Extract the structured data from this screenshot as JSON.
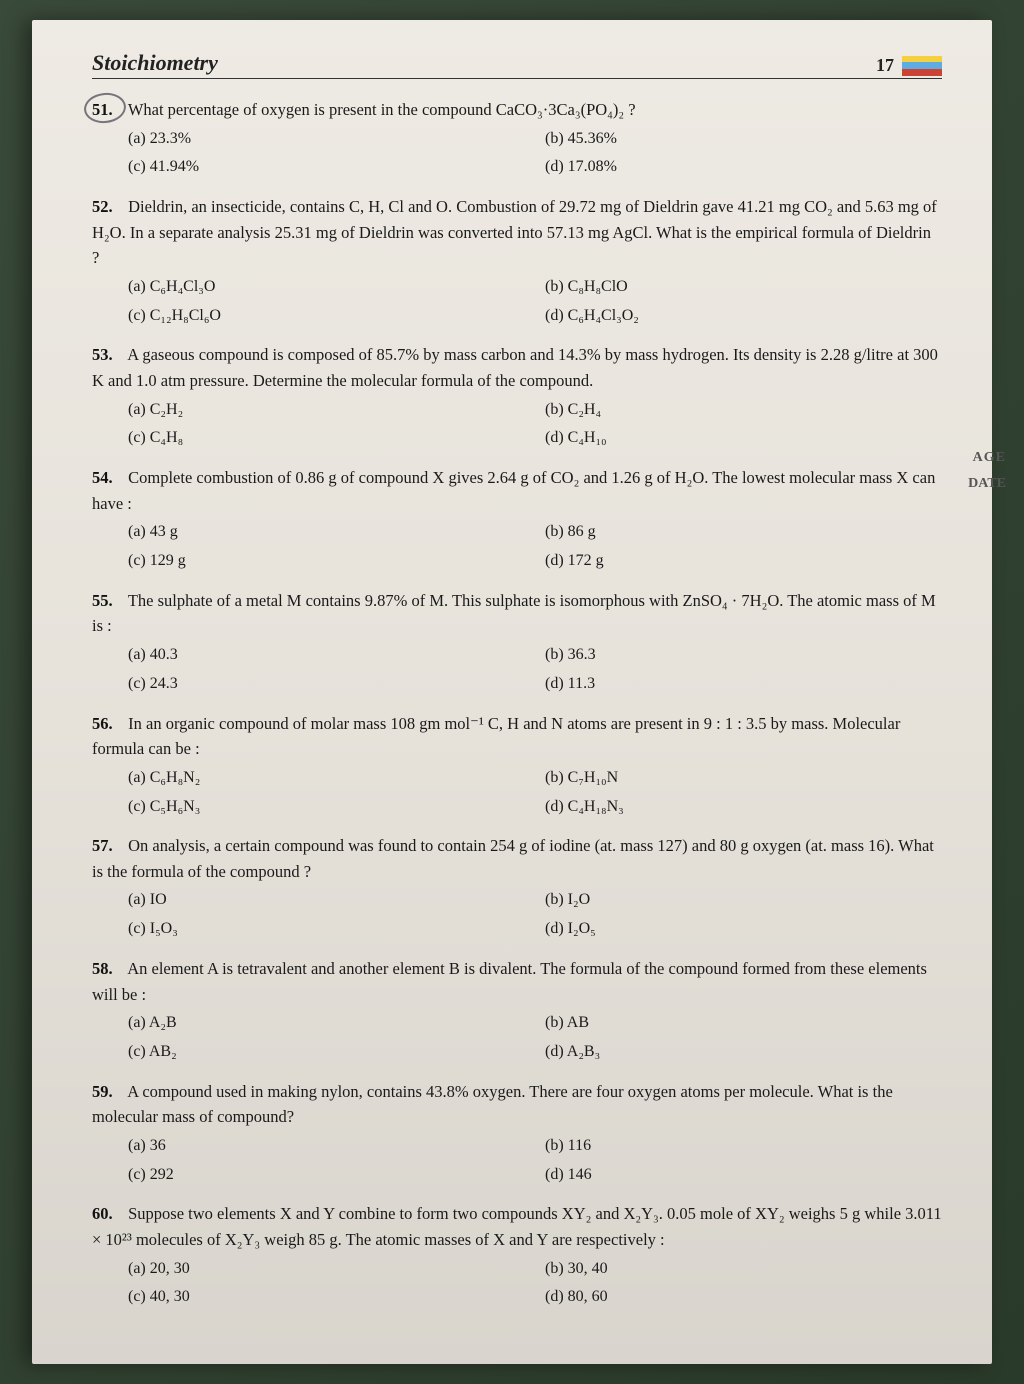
{
  "chapter_title": "Stoichiometry",
  "page_number": "17",
  "side_labels": [
    "AGE",
    "DATE"
  ],
  "colors": {
    "background": "#ebe7df",
    "text": "#1a1a1a",
    "bar_yellow": "#f4d03f",
    "bar_cyan": "#5dade2",
    "bar_red": "#cb4335"
  },
  "typography": {
    "body_fontsize": 16.5,
    "title_fontsize": 22,
    "font_family": "Georgia, Times New Roman, serif"
  },
  "questions": [
    {
      "num": "51.",
      "circled": true,
      "text": "What percentage of oxygen is present in the compound CaCO₃·3Ca₃(PO₄)₂ ?",
      "options": [
        "(a) 23.3%",
        "(b) 45.36%",
        "(c) 41.94%",
        "(d) 17.08%"
      ]
    },
    {
      "num": "52.",
      "text": "Dieldrin, an insecticide, contains C, H, Cl and O. Combustion of 29.72 mg of Dieldrin gave 41.21 mg CO₂ and 5.63 mg of H₂O. In a separate analysis 25.31 mg of Dieldrin was converted into 57.13 mg AgCl. What is the empirical formula of Dieldrin ?",
      "options": [
        "(a) C₆H₄Cl₃O",
        "(b) C₈H₈ClO",
        "(c) C₁₂H₈Cl₆O",
        "(d) C₆H₄Cl₃O₂"
      ]
    },
    {
      "num": "53.",
      "text": "A gaseous compound is composed of 85.7% by mass carbon and 14.3% by mass hydrogen. Its density is 2.28 g/litre at 300 K and 1.0 atm pressure. Determine the molecular formula of the compound.",
      "options": [
        "(a) C₂H₂",
        "(b) C₂H₄",
        "(c) C₄H₈",
        "(d) C₄H₁₀"
      ]
    },
    {
      "num": "54.",
      "text": "Complete combustion of 0.86 g of compound X gives 2.64 g of CO₂ and 1.26 g of H₂O. The lowest molecular mass X can have :",
      "options": [
        "(a) 43 g",
        "(b) 86 g",
        "(c) 129 g",
        "(d) 172 g"
      ]
    },
    {
      "num": "55.",
      "text": "The sulphate of a metal M contains 9.87% of M. This sulphate is isomorphous with ZnSO₄ · 7H₂O. The atomic mass of M is :",
      "options": [
        "(a) 40.3",
        "(b) 36.3",
        "(c) 24.3",
        "(d) 11.3"
      ]
    },
    {
      "num": "56.",
      "text": "In an organic compound of molar mass 108 gm mol⁻¹ C, H and N atoms are present in 9 : 1 : 3.5 by mass. Molecular formula can be :",
      "options": [
        "(a) C₆H₈N₂",
        "(b) C₇H₁₀N",
        "(c) C₅H₆N₃",
        "(d) C₄H₁₈N₃"
      ]
    },
    {
      "num": "57.",
      "text": "On analysis, a certain compound was found to contain 254 g of iodine (at. mass 127) and 80 g oxygen (at. mass 16). What is the formula of the compound ?",
      "options": [
        "(a) IO",
        "(b) I₂O",
        "(c) I₅O₃",
        "(d) I₂O₅"
      ]
    },
    {
      "num": "58.",
      "text": "An element A is tetravalent and another element B is divalent. The formula of the compound formed from these elements will be :",
      "options": [
        "(a) A₂B",
        "(b) AB",
        "(c) AB₂",
        "(d) A₂B₃"
      ]
    },
    {
      "num": "59.",
      "text": "A compound used in making nylon, contains 43.8% oxygen. There are four oxygen atoms per molecule. What is the molecular mass of compound?",
      "options": [
        "(a) 36",
        "(b) 116",
        "(c) 292",
        "(d) 146"
      ]
    },
    {
      "num": "60.",
      "text": "Suppose two elements X and Y combine to form two compounds XY₂ and X₂Y₃. 0.05 mole of XY₂ weighs 5 g while 3.011 × 10²³ molecules of X₂Y₃ weigh 85 g. The atomic masses of X and Y are respectively :",
      "options": [
        "(a) 20, 30",
        "(b) 30, 40",
        "(c) 40, 30",
        "(d) 80, 60"
      ]
    }
  ]
}
